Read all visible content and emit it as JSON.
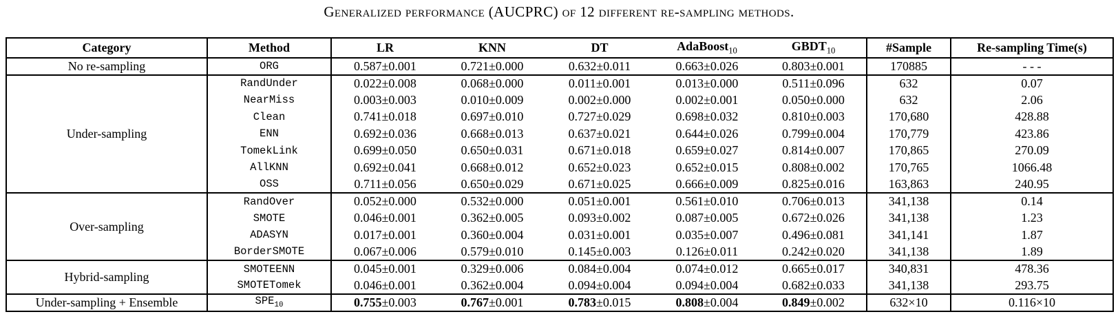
{
  "title": "Generalized performance (AUCPRC) of 12 different re-sampling methods.",
  "colors": {
    "border": "#000000",
    "text": "#000000",
    "background": "#ffffff"
  },
  "table": {
    "headers": [
      {
        "label": "Category"
      },
      {
        "label": "Method"
      },
      {
        "label": "LR"
      },
      {
        "label": "KNN"
      },
      {
        "label": "DT"
      },
      {
        "label": "AdaBoost",
        "sub": "10"
      },
      {
        "label": "GBDT",
        "sub": "10"
      },
      {
        "label": "#Sample"
      },
      {
        "label": "Re-sampling Time(s)"
      }
    ],
    "sections": [
      {
        "category": "No re-sampling",
        "rows": [
          {
            "method": {
              "name": "ORG"
            },
            "values": [
              "0.587±0.001",
              "0.721±0.000",
              "0.632±0.011",
              "0.663±0.026",
              "0.803±0.001"
            ],
            "sample": "170885",
            "time": "- - -"
          }
        ]
      },
      {
        "category": "Under-sampling",
        "rows": [
          {
            "method": {
              "name": "RandUnder"
            },
            "values": [
              "0.022±0.008",
              "0.068±0.000",
              "0.011±0.001",
              "0.013±0.000",
              "0.511±0.096"
            ],
            "sample": "632",
            "time": "0.07"
          },
          {
            "method": {
              "name": "NearMiss"
            },
            "values": [
              "0.003±0.003",
              "0.010±0.009",
              "0.002±0.000",
              "0.002±0.001",
              "0.050±0.000"
            ],
            "sample": "632",
            "time": "2.06"
          },
          {
            "method": {
              "name": "Clean"
            },
            "values": [
              "0.741±0.018",
              "0.697±0.010",
              "0.727±0.029",
              "0.698±0.032",
              "0.810±0.003"
            ],
            "sample": "170,680",
            "time": "428.88"
          },
          {
            "method": {
              "name": "ENN"
            },
            "values": [
              "0.692±0.036",
              "0.668±0.013",
              "0.637±0.021",
              "0.644±0.026",
              "0.799±0.004"
            ],
            "sample": "170,779",
            "time": "423.86"
          },
          {
            "method": {
              "name": "TomekLink"
            },
            "values": [
              "0.699±0.050",
              "0.650±0.031",
              "0.671±0.018",
              "0.659±0.027",
              "0.814±0.007"
            ],
            "sample": "170,865",
            "time": "270.09"
          },
          {
            "method": {
              "name": "AllKNN"
            },
            "values": [
              "0.692±0.041",
              "0.668±0.012",
              "0.652±0.023",
              "0.652±0.015",
              "0.808±0.002"
            ],
            "sample": "170,765",
            "time": "1066.48"
          },
          {
            "method": {
              "name": "OSS"
            },
            "values": [
              "0.711±0.056",
              "0.650±0.029",
              "0.671±0.025",
              "0.666±0.009",
              "0.825±0.016"
            ],
            "sample": "163,863",
            "time": "240.95"
          }
        ]
      },
      {
        "category": "Over-sampling",
        "rows": [
          {
            "method": {
              "name": "RandOver"
            },
            "values": [
              "0.052±0.000",
              "0.532±0.000",
              "0.051±0.001",
              "0.561±0.010",
              "0.706±0.013"
            ],
            "sample": "341,138",
            "time": "0.14"
          },
          {
            "method": {
              "name": "SMOTE"
            },
            "values": [
              "0.046±0.001",
              "0.362±0.005",
              "0.093±0.002",
              "0.087±0.005",
              "0.672±0.026"
            ],
            "sample": "341,138",
            "time": "1.23"
          },
          {
            "method": {
              "name": "ADASYN"
            },
            "values": [
              "0.017±0.001",
              "0.360±0.004",
              "0.031±0.001",
              "0.035±0.007",
              "0.496±0.081"
            ],
            "sample": "341,141",
            "time": "1.87"
          },
          {
            "method": {
              "name": "BorderSMOTE"
            },
            "values": [
              "0.067±0.006",
              "0.579±0.010",
              "0.145±0.003",
              "0.126±0.011",
              "0.242±0.020"
            ],
            "sample": "341,138",
            "time": "1.89"
          }
        ]
      },
      {
        "category": "Hybrid-sampling",
        "rows": [
          {
            "method": {
              "name": "SMOTEENN"
            },
            "values": [
              "0.045±0.001",
              "0.329±0.006",
              "0.084±0.004",
              "0.074±0.012",
              "0.665±0.017"
            ],
            "sample": "340,831",
            "time": "478.36"
          },
          {
            "method": {
              "name": "SMOTETomek"
            },
            "values": [
              "0.046±0.001",
              "0.362±0.004",
              "0.094±0.004",
              "0.094±0.004",
              "0.682±0.033"
            ],
            "sample": "341,138",
            "time": "293.75"
          }
        ]
      },
      {
        "category": "Under-sampling + Ensemble",
        "rows": [
          {
            "method": {
              "name": "SPE",
              "sub": "10"
            },
            "bold_means": true,
            "values": [
              "0.755±0.003",
              "0.767±0.001",
              "0.783±0.015",
              "0.808±0.004",
              "0.849±0.002"
            ],
            "sample": "632×10",
            "time": "0.116×10"
          }
        ]
      }
    ]
  }
}
